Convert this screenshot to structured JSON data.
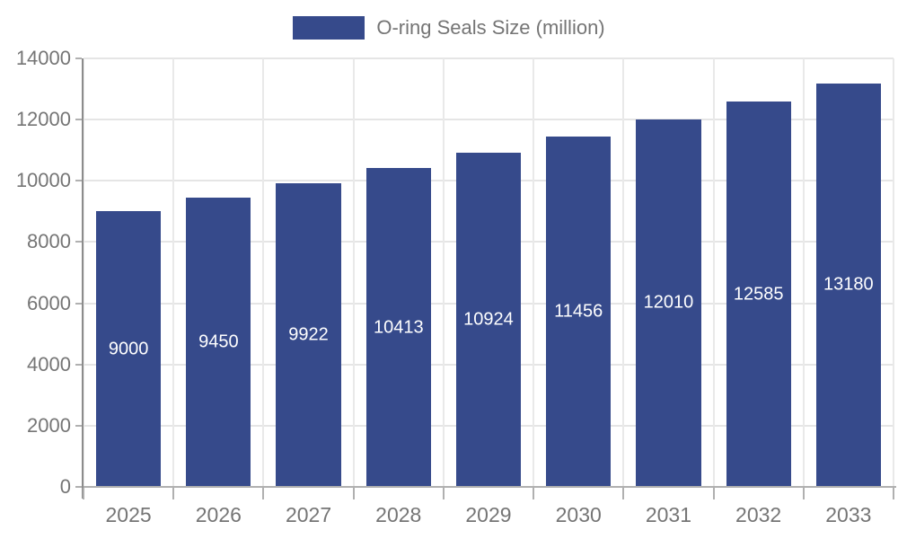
{
  "legend": {
    "label": "O-ring Seals Size (million)",
    "swatch_color": "#364A8B"
  },
  "chart_data": {
    "type": "bar",
    "title": "",
    "xlabel": "",
    "ylabel": "",
    "categories": [
      "2025",
      "2026",
      "2027",
      "2028",
      "2029",
      "2030",
      "2031",
      "2032",
      "2033"
    ],
    "series": [
      {
        "name": "O-ring Seals Size (million)",
        "values": [
          9000,
          9450,
          9922,
          10413,
          10924,
          11456,
          12010,
          12585,
          13180
        ]
      }
    ],
    "ylim": [
      0,
      14000
    ],
    "yticks": [
      0,
      2000,
      4000,
      6000,
      8000,
      10000,
      12000,
      14000
    ],
    "grid": true,
    "legend_position": "top",
    "bar_color": "#364A8B",
    "value_label_color": "#ffffff",
    "axis_text_color": "#757575"
  }
}
